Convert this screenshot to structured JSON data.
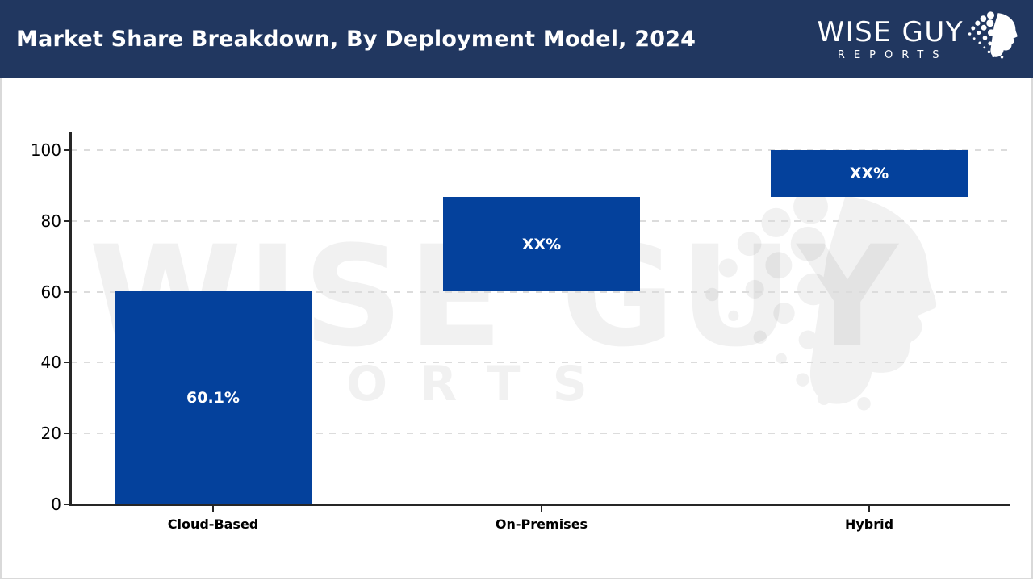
{
  "header": {
    "title": "Market Share Breakdown, By Deployment Model, 2024",
    "logo": {
      "name_line": "WISE GUY",
      "sub_line": "REPORTS",
      "head_icon": "dotted-head-profile"
    }
  },
  "watermark": {
    "line1": "WISE GUY",
    "line2": "REPORTS",
    "head_icon": "dotted-head-profile"
  },
  "chart_data": {
    "type": "bar",
    "subtype": "floating-waterfall",
    "title": "Market Share Breakdown, By Deployment Model, 2024",
    "categories": [
      "Cloud-Based",
      "On-Premises",
      "Hybrid"
    ],
    "segments": [
      {
        "category": "Cloud-Based",
        "start": 0,
        "end": 60.1,
        "label": "60.1%"
      },
      {
        "category": "On-Premises",
        "start": 60.1,
        "end": 86.8,
        "label": "XX%"
      },
      {
        "category": "Hybrid",
        "start": 86.8,
        "end": 100,
        "label": "XX%"
      }
    ],
    "ylim": [
      0,
      100
    ],
    "yticks": [
      "0",
      "20",
      "40",
      "60",
      "80",
      "100"
    ],
    "xlabel": "",
    "ylabel": "",
    "legend": null,
    "grid": {
      "horizontal": true,
      "style": "dashed"
    },
    "colors": {
      "bar": "#04419c",
      "bar_label": "#ffffff",
      "header_bg": "#213760",
      "axis": "#262626",
      "grid": "#dcdcdc",
      "watermark": "#f2f2f2"
    }
  }
}
